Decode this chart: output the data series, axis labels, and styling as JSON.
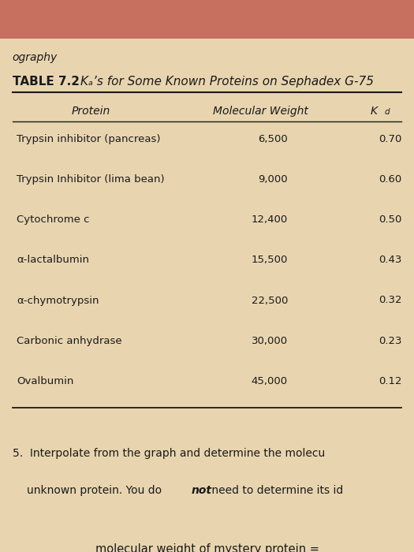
{
  "page_label": "ography",
  "table_title_bold": "TABLE 7.2",
  "table_title_italic": "Kₐ’s for Some Known Proteins on Sephadex G-75",
  "col_headers": [
    "Protein",
    "Molecular Weight",
    "Kₐ"
  ],
  "rows": [
    [
      "Trypsin inhibitor (pancreas)",
      "6,500",
      "0.70"
    ],
    [
      "Trypsin Inhibitor (lima bean)",
      "9,000",
      "0.60"
    ],
    [
      "Cytochrome c",
      "12,400",
      "0.50"
    ],
    [
      "α-lactalbumin",
      "15,500",
      "0.43"
    ],
    [
      "α-chymotrypsin",
      "22,500",
      "0.32"
    ],
    [
      "Carbonic anhydrase",
      "30,000",
      "0.23"
    ],
    [
      "Ovalbumin",
      "45,000",
      "0.12"
    ]
  ],
  "question_text_1": "5.  Interpolate from the graph and determine the molecu",
  "question_text_2": "unknown protein. You do ",
  "question_text_2_italic": "not",
  "question_text_2_end": " need to determine its id",
  "question_text_3": "molecular weight of mystery protein =",
  "bg_color": "#e8d5b0",
  "text_color": "#1a1a1a",
  "top_image_color": "#c87060",
  "line_color": "#1a1a1a"
}
